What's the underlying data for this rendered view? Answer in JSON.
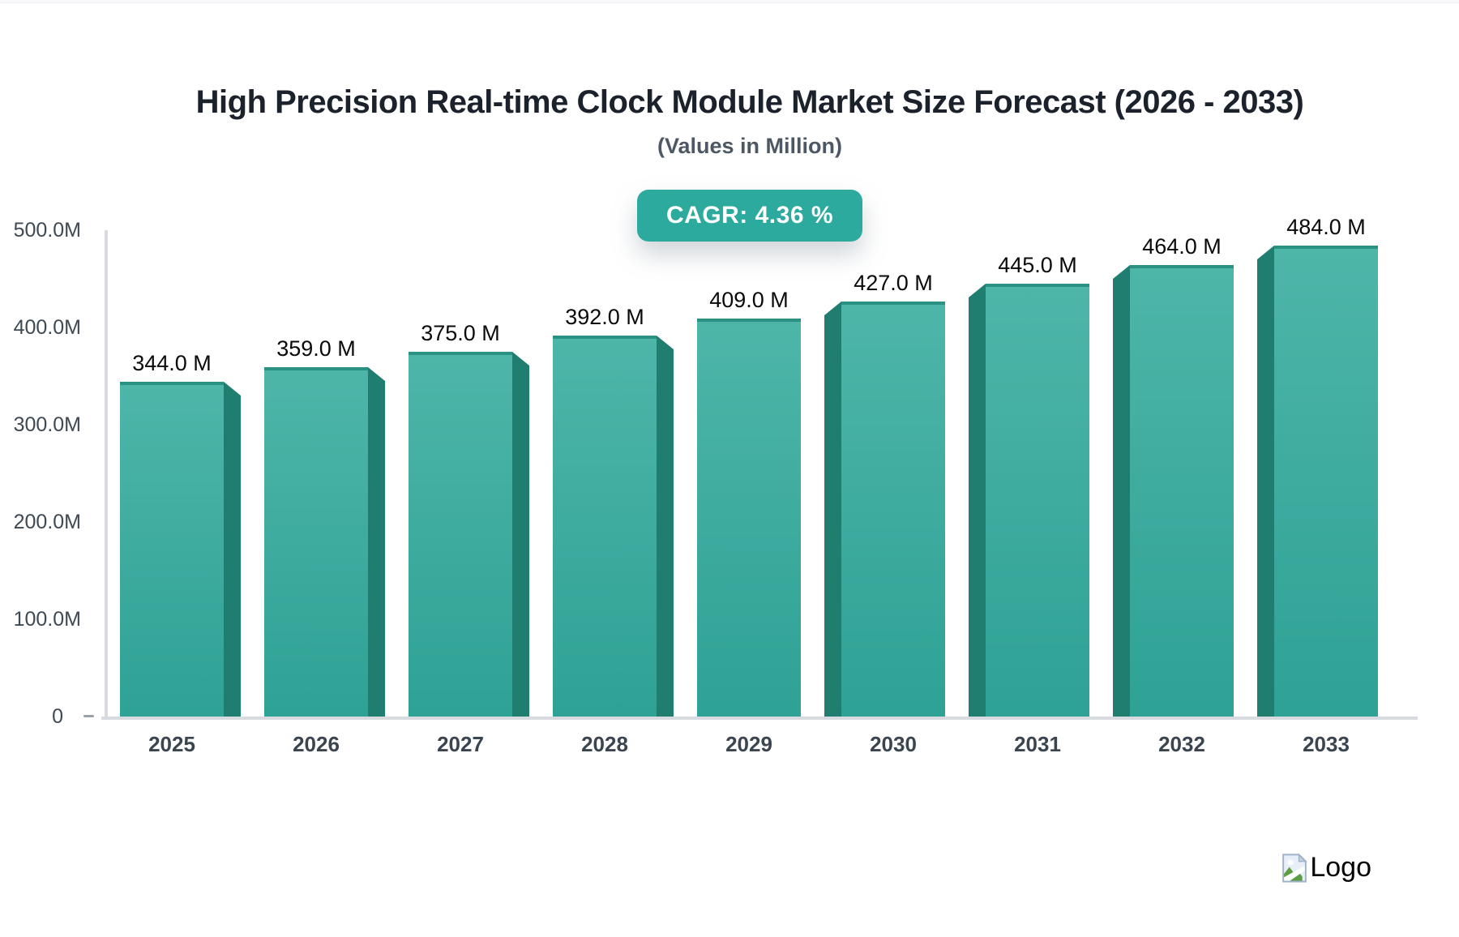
{
  "page": {
    "title": "High Precision Real-time Clock Module Market Size Forecast (2026 - 2033)",
    "subtitle": "(Values in Million)",
    "cagr_badge": "CAGR: 4.36 %",
    "logo_alt": "Logo"
  },
  "colors": {
    "badge_bg": "#2baa9d",
    "bar_face_top": "#4eb5a9",
    "bar_face_bottom": "#2ea295",
    "bar_side": "#1f7e70",
    "bar_top_edge": "#2b9183",
    "axis_line": "#d7dade",
    "tick_text": "#3e4954"
  },
  "chart_data": {
    "type": "bar",
    "title": "High Precision Real-time Clock Module Market Size Forecast (2026 - 2033)",
    "subtitle": "(Values in Million)",
    "xlabel": "",
    "ylabel": "Values in Million",
    "categories": [
      "2025",
      "2026",
      "2027",
      "2028",
      "2029",
      "2030",
      "2031",
      "2032",
      "2033"
    ],
    "values": [
      344,
      359,
      375,
      392,
      409,
      427,
      445,
      464,
      484
    ],
    "bar_labels": [
      "344.0 M",
      "359.0 M",
      "375.0 M",
      "392.0 M",
      "409.0 M",
      "427.0 M",
      "445.0 M",
      "464.0 M",
      "484.0 M"
    ],
    "y_tick_labels": [
      "500.0M",
      "400.0M",
      "300.0M",
      "200.0M",
      "100.0M",
      "0"
    ],
    "y_tick_values": [
      500,
      400,
      300,
      200,
      100,
      0
    ],
    "ylim": [
      0,
      500
    ],
    "grid": false,
    "legend": false,
    "annotations": [
      {
        "type": "badge",
        "text": "CAGR: 4.36 %"
      }
    ]
  }
}
